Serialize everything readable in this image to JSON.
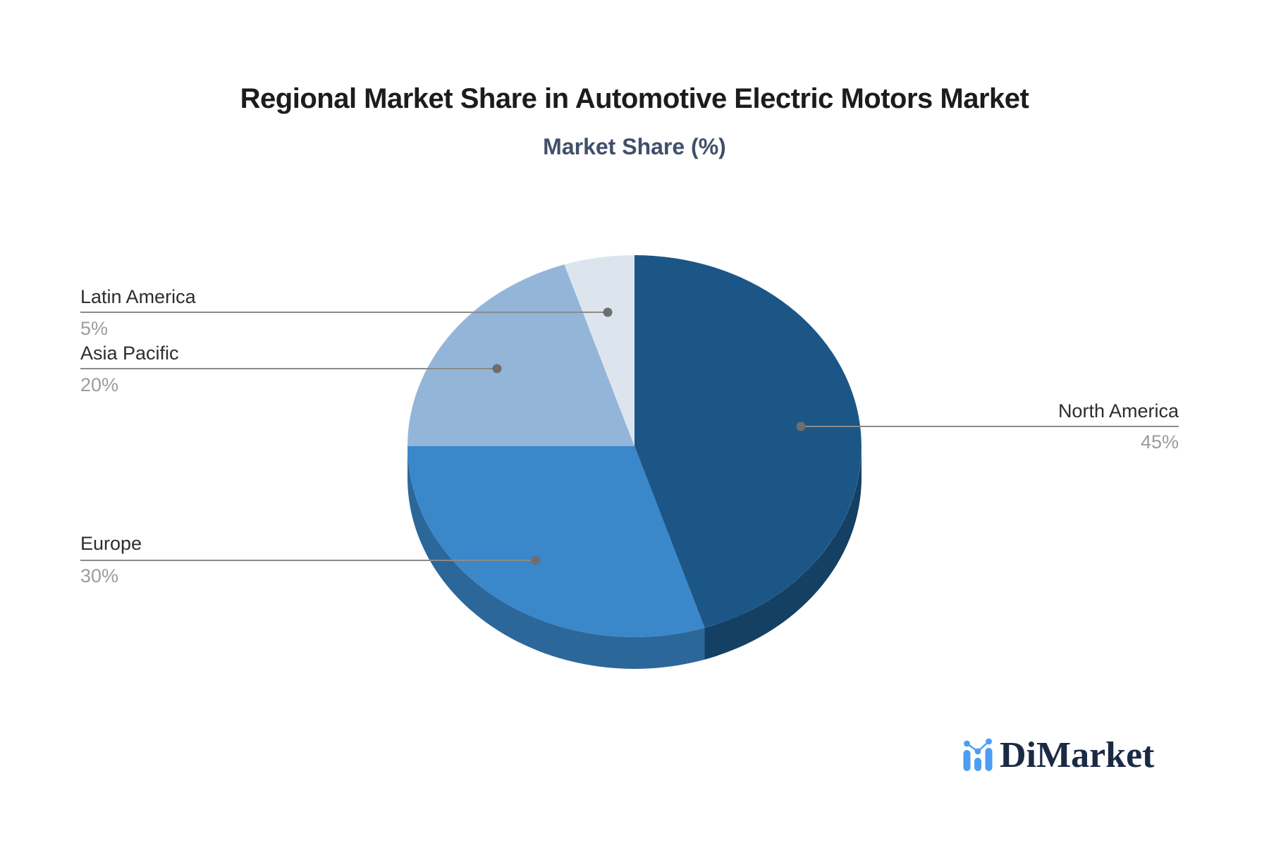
{
  "title": "Regional Market Share in Automotive Electric Motors Market",
  "subtitle": "Market Share (%)",
  "chart_data": {
    "type": "pie",
    "title": "Regional Market Share in Automotive Electric Motors Market",
    "subtitle": "Market Share (%)",
    "unit": "%",
    "effect": "3d-depth",
    "start_angle_deg": 0,
    "direction": "clockwise",
    "legend": "none",
    "slices": [
      {
        "label": "North America",
        "value": 45,
        "pct_label": "45%",
        "color": "#1b5687",
        "side_color": "#144064"
      },
      {
        "label": "Europe",
        "value": 30,
        "pct_label": "30%",
        "color": "#3a87ca",
        "side_color": "#2c679a"
      },
      {
        "label": "Asia Pacific",
        "value": 20,
        "pct_label": "20%",
        "color": "#93b5d8",
        "side_color": "#6f89a4"
      },
      {
        "label": "Latin America",
        "value": 5,
        "pct_label": "5%",
        "color": "#dce4ee",
        "side_color": "#a7adb5"
      }
    ],
    "callout_line_color": "#8b8b8b",
    "callout_dot_color": "#6e6e6e",
    "label_color": "#2d2d2d",
    "pct_color": "#9c9c9c"
  },
  "brand": {
    "text": "DiMarket",
    "icon": "bar-chart-logo-icon",
    "text_color": "#1b2a44",
    "icon_color": "#4d9df2"
  }
}
